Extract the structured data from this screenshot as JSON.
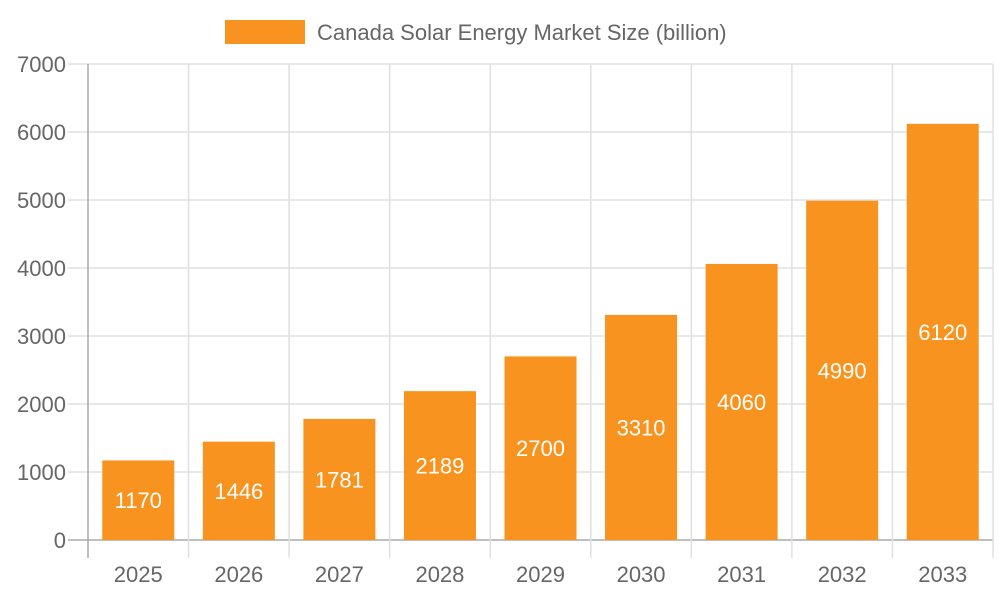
{
  "chart_data": {
    "type": "bar",
    "title": "",
    "xlabel": "",
    "ylabel": "",
    "categories": [
      "2025",
      "2026",
      "2027",
      "2028",
      "2029",
      "2030",
      "2031",
      "2032",
      "2033"
    ],
    "series": [
      {
        "name": "Canada Solar Energy Market Size (billion)",
        "values": [
          1170,
          1446,
          1781,
          2189,
          2700,
          3310,
          4060,
          4990,
          6120
        ],
        "color": "#F7931E"
      }
    ],
    "ylim": [
      0,
      7000
    ],
    "yticks": [
      "0",
      "1000",
      "2000",
      "3000",
      "4000",
      "5000",
      "6000",
      "7000"
    ],
    "grid": true,
    "legend": "top-center",
    "data_labels": "inside-center"
  }
}
